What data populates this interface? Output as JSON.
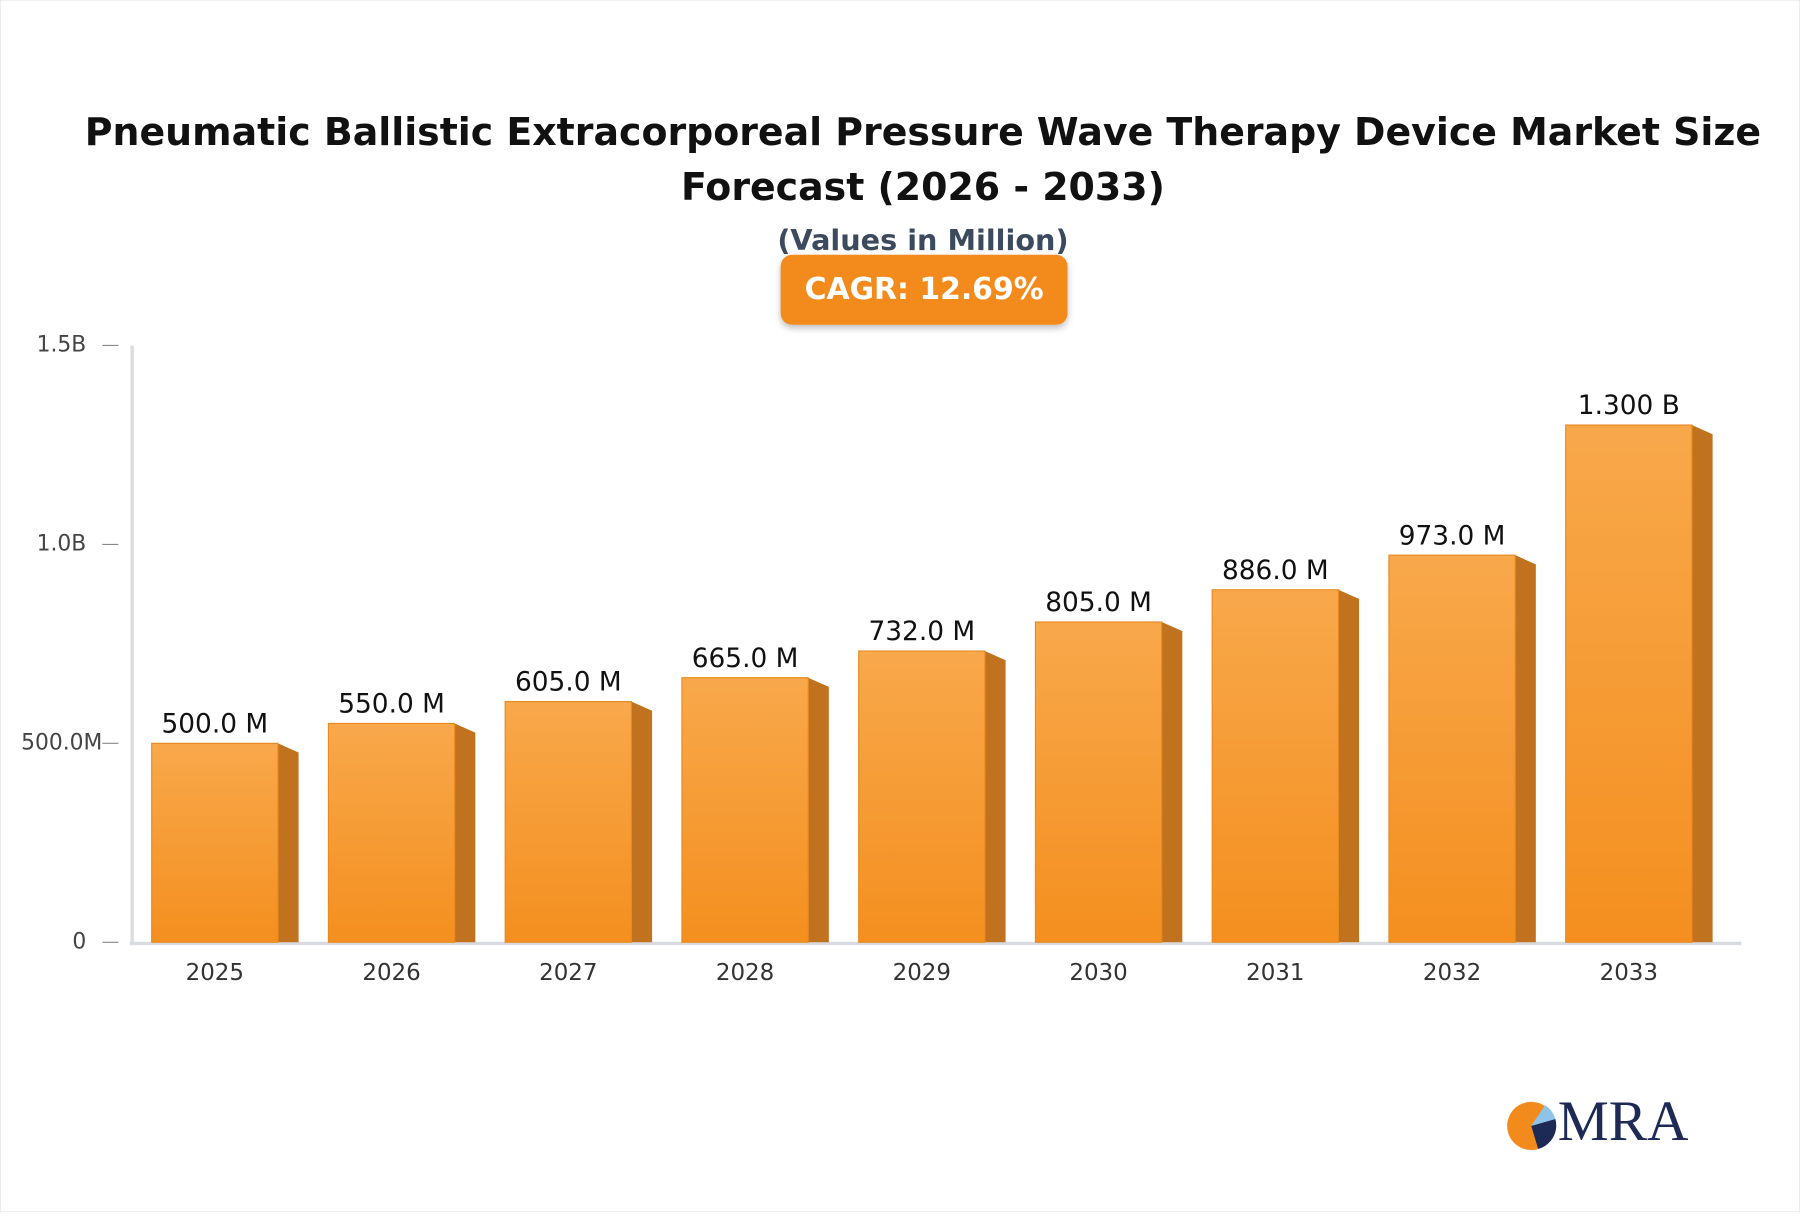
{
  "chart_data": {
    "type": "bar",
    "title": "Pneumatic Ballistic Extracorporeal Pressure Wave Therapy Device Market Size Forecast (2026 - 2033)",
    "subtitle": "(Values in Million)",
    "annotation": "CAGR: 12.69%",
    "logo": "MRA",
    "categories": [
      "2025",
      "2026",
      "2027",
      "2028",
      "2029",
      "2030",
      "2031",
      "2032",
      "2033"
    ],
    "values": [
      500,
      550,
      605,
      665,
      732,
      805,
      886,
      973,
      1300
    ],
    "value_labels": [
      "500.0 M",
      "550.0 M",
      "605.0 M",
      "665.0 M",
      "732.0 M",
      "805.0 M",
      "886.0 M",
      "973.0 M",
      "1.300 B"
    ],
    "color": "#f7a448",
    "ylim": [
      0,
      1500
    ],
    "yticks": [
      0,
      {
        "value": 500,
        "label": "500.0M"
      },
      {
        "value": 1000,
        "label": "1.0B"
      },
      {
        "value": 1500,
        "label": "1.5B"
      }
    ],
    "grid": false
  }
}
